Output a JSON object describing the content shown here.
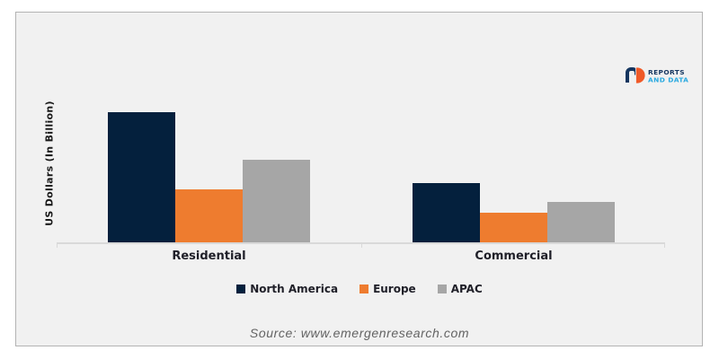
{
  "chart_data": {
    "type": "bar",
    "title": "",
    "categories": [
      "Residential",
      "Commercial"
    ],
    "series": [
      {
        "name": "North America",
        "color": "#04203d",
        "values": [
          14.6,
          6.7
        ]
      },
      {
        "name": "Europe",
        "color": "#ee7c2f",
        "values": [
          6.0,
          3.4
        ]
      },
      {
        "name": "APAC",
        "color": "#a6a6a6",
        "values": [
          9.3,
          4.6
        ]
      }
    ],
    "xlabel": "",
    "ylabel": "US Dollars (In Billion)",
    "ylim": [
      0,
      16
    ],
    "grid": false,
    "legend_position": "bottom",
    "value_note": "y-axis has no tick labels; values are relative estimates read from bar heights"
  },
  "panel": {
    "background": "#f1f1f1",
    "border_color": "#b3b3b3",
    "axis_color": "#d9d9d9"
  },
  "logo": {
    "line1": "REPORTS",
    "line2": "AND DATA",
    "mark_r_color": "#14355f",
    "mark_d_color": "#f05a28",
    "line1_color": "#14355f",
    "line2_color": "#29a9e0"
  },
  "source": {
    "text": "Source: www.emergenresearch.com"
  }
}
